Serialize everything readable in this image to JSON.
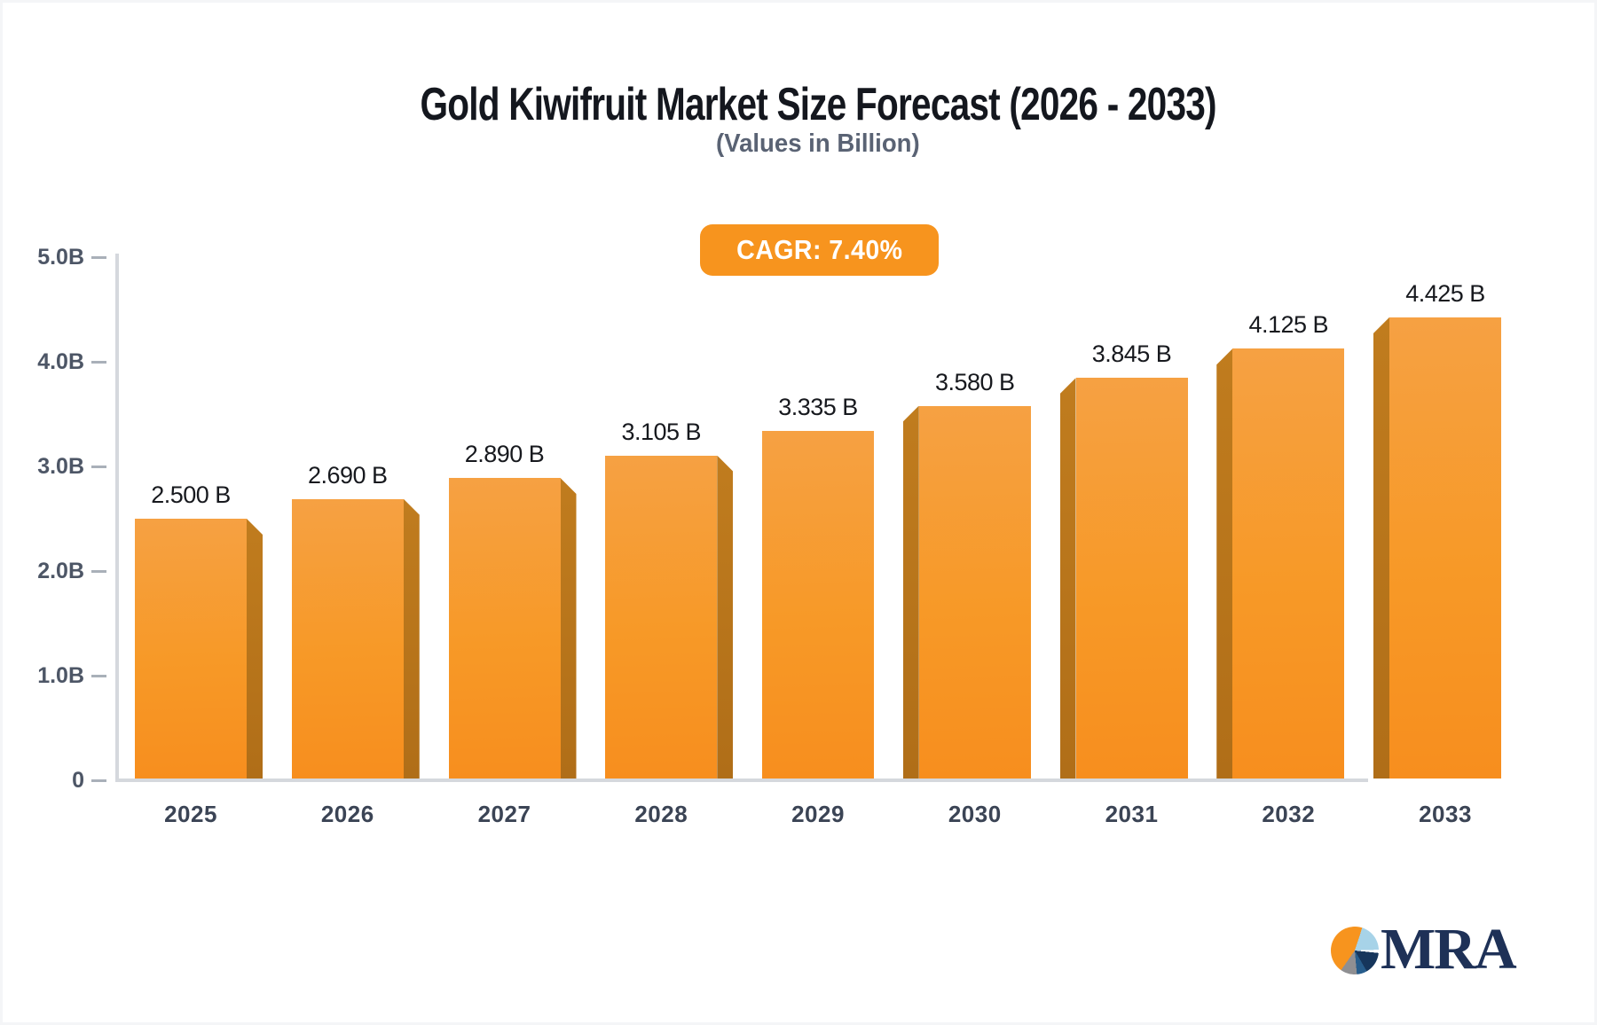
{
  "header": {
    "title": "Gold Kiwifruit Market Size Forecast (2026 - 2033)",
    "subtitle": "(Values in Billion)"
  },
  "cagr_badge": {
    "label": "CAGR: 7.40%",
    "color": "#f7941e"
  },
  "chart_data": {
    "type": "bar",
    "title": "Gold Kiwifruit Market Size Forecast (2026 - 2033)",
    "subtitle": "(Values in Billion)",
    "categories": [
      "2025",
      "2026",
      "2027",
      "2028",
      "2029",
      "2030",
      "2031",
      "2032",
      "2033"
    ],
    "values": [
      2.5,
      2.69,
      2.89,
      3.105,
      3.335,
      3.58,
      3.845,
      4.125,
      4.425
    ],
    "value_labels": [
      "2.500 B",
      "2.690 B",
      "2.890 B",
      "3.105 B",
      "3.335 B",
      "3.580 B",
      "3.845 B",
      "4.125 B",
      "4.425 B"
    ],
    "xlabel": "",
    "ylabel": "",
    "ylim": [
      0,
      5
    ],
    "y_ticks": [
      {
        "value": 5,
        "label": "5.0B"
      },
      {
        "value": 4,
        "label": "4.0B"
      },
      {
        "value": 3,
        "label": "3.0B"
      },
      {
        "value": 2,
        "label": "2.0B"
      },
      {
        "value": 1,
        "label": "1.0B"
      },
      {
        "value": 0,
        "label": "0"
      }
    ],
    "grid": false,
    "legend": false,
    "bar_style": "3d-bevel",
    "colors": {
      "bar_top": "#f6a143",
      "bar_bottom": "#f78e1e",
      "bar_side": "#b5731b",
      "axis_line": "#d5d8dd",
      "tick_dash": "#a9b0b9",
      "y_label": "#4d5666",
      "x_label": "#3b4455",
      "value_label": "#17191e",
      "title": "#14171e",
      "subtitle": "#5a6374"
    }
  },
  "logo": {
    "text": "MRA",
    "icon": "pie-chart-icon",
    "text_color": "#1e3157",
    "pie_colors": [
      "#f7941e",
      "#a7d3e8",
      "#16365c",
      "#275d8c",
      "#8f8f92"
    ]
  }
}
